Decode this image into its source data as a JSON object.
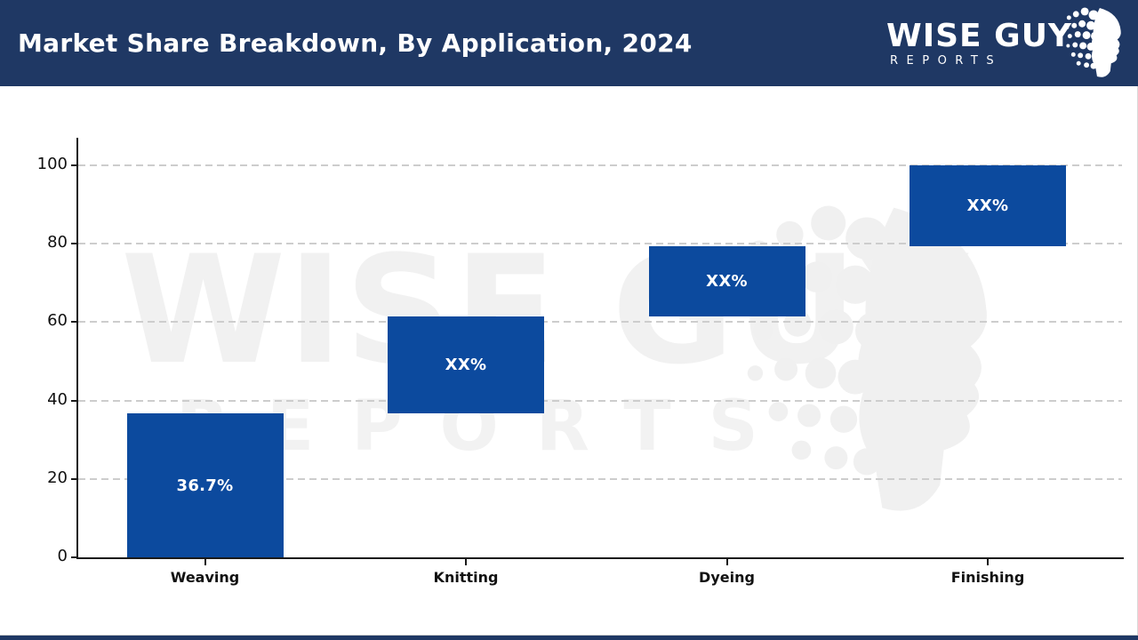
{
  "header": {
    "title": "Market Share Breakdown, By Application, 2024",
    "logo": {
      "line1": "WISE GUY",
      "line2": "REPORTS"
    }
  },
  "watermark": {
    "line1": "WISE GUY",
    "line2": "REPORTS"
  },
  "chart_data": {
    "type": "bar",
    "subtype": "waterfall",
    "title": "Market Share Breakdown, By Application, 2024",
    "categories": [
      "Weaving",
      "Knitting",
      "Dyeing",
      "Finishing"
    ],
    "segments": [
      {
        "label": "Weaving",
        "start": 0,
        "end": 36.7,
        "display": "36.7%"
      },
      {
        "label": "Knitting",
        "start": 36.7,
        "end": 61.4,
        "display": "XX%"
      },
      {
        "label": "Dyeing",
        "start": 61.4,
        "end": 79.3,
        "display": "XX%"
      },
      {
        "label": "Finishing",
        "start": 79.3,
        "end": 100,
        "display": "XX%"
      }
    ],
    "y_ticks": [
      0,
      20,
      40,
      60,
      80,
      100
    ],
    "ylim": [
      0,
      107
    ],
    "xlabel": "",
    "ylabel": "",
    "grid": "horizontal-dashed",
    "legend": "none"
  },
  "colors": {
    "header_bg": "#1f3864",
    "bar": "#0c4a9e",
    "grid": "#cdcdcd",
    "axis": "#1a1a1a",
    "watermark": "#f1f1f1",
    "footer_bar": "#1f3864"
  }
}
